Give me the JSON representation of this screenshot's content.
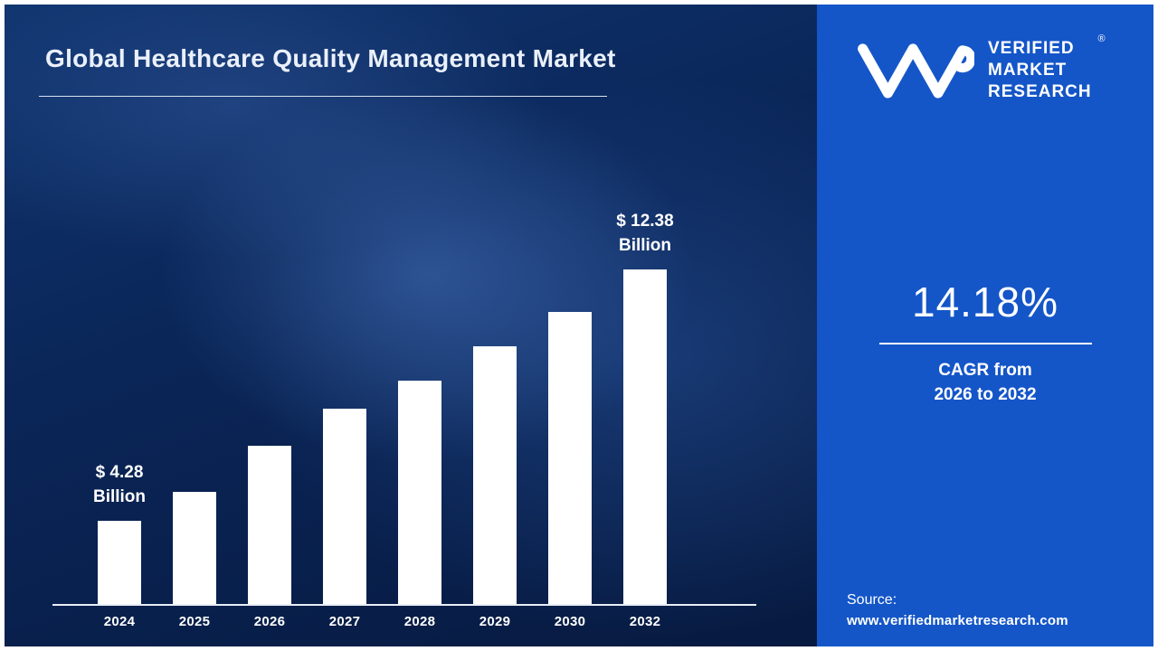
{
  "title": "Global Healthcare Quality Management Market",
  "brand": {
    "name_line1": "VERIFIED",
    "name_line2": "MARKET",
    "name_line3": "RESEARCH",
    "registered_mark": "®"
  },
  "stats": {
    "cagr_value": "14.18%",
    "cagr_caption_line1": "CAGR from",
    "cagr_caption_line2": "2026 to 2032"
  },
  "source": {
    "label": "Source:",
    "url": "www.verifiedmarketresearch.com"
  },
  "chart_data": {
    "type": "bar",
    "title": "Global Healthcare Quality Management Market",
    "categories": [
      "2024",
      "2025",
      "2026",
      "2027",
      "2028",
      "2029",
      "2030",
      "2032"
    ],
    "values": [
      4.28,
      5.2,
      6.7,
      7.9,
      8.8,
      9.9,
      11.0,
      12.38
    ],
    "unit": "USD Billion",
    "ylim": [
      0,
      13
    ],
    "grid": false,
    "legend": false,
    "bar_color": "#ffffff",
    "annotations": [
      {
        "category_index": 0,
        "line1": "$ 4.28",
        "line2": "Billion"
      },
      {
        "category_index": 7,
        "line1": "$ 12.38",
        "line2": "Billion"
      }
    ]
  },
  "colors": {
    "left_background": "#0a2557",
    "panel_background": "#1456c8",
    "bar": "#ffffff",
    "text": "#ffffff"
  }
}
